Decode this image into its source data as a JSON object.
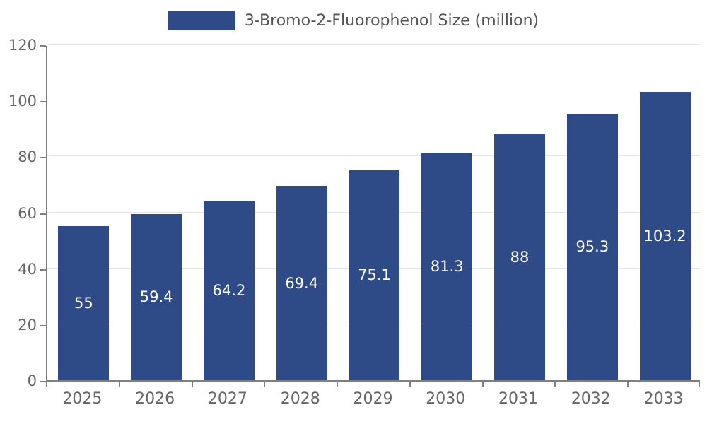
{
  "chart_data": {
    "type": "bar",
    "title": "",
    "legend": "3-Bromo-2-Fluorophenol Size (million)",
    "categories": [
      "2025",
      "2026",
      "2027",
      "2028",
      "2029",
      "2030",
      "2031",
      "2032",
      "2033"
    ],
    "values": [
      55,
      59.4,
      64.2,
      69.4,
      75.1,
      81.3,
      88,
      95.3,
      103.2
    ],
    "value_labels": [
      "55",
      "59.4",
      "64.2",
      "69.4",
      "75.1",
      "81.3",
      "88",
      "95.3",
      "103.2"
    ],
    "xlabel": "",
    "ylabel": "",
    "ylim": [
      0,
      120
    ],
    "yticks": [
      0,
      20,
      40,
      60,
      80,
      100,
      120
    ],
    "grid": true,
    "legend_position": "top",
    "colors": {
      "bar": "#2e4a87",
      "value_label": "#ffffff",
      "axis": "#808080",
      "gridline": "#e4e4e4",
      "tick_label": "#666666",
      "legend_text": "#555555"
    }
  }
}
